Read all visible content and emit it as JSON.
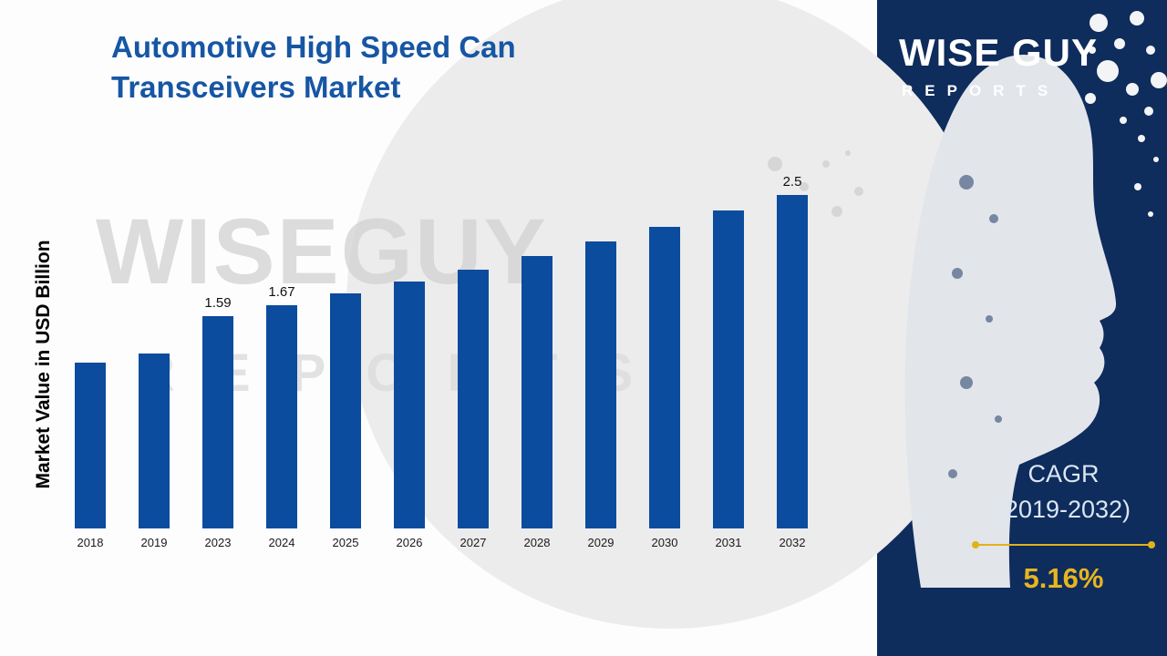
{
  "title": "Automotive High Speed Can Transceivers Market",
  "watermark": {
    "line1": "WISEGUY",
    "line2": "REPORTS"
  },
  "brand": {
    "line1": "WISE GUY",
    "line2": "REPORTS"
  },
  "cagr": {
    "label": "CAGR",
    "range": "(2019-2032)",
    "value": "5.16%"
  },
  "colors": {
    "bar": "#0b4c9e",
    "title_text": "#1656a4",
    "panel_navy": "#0e2c5c",
    "accent_gold": "#e2b219",
    "watermark_gray": "#d4d4d4"
  },
  "chart_data": {
    "type": "bar",
    "title": "Automotive High Speed Can Transceivers Market",
    "xlabel": "",
    "ylabel": "Market Value in USD Billion",
    "unit": "USD Billion",
    "categories": [
      "2018",
      "2019",
      "2023",
      "2024",
      "2025",
      "2026",
      "2027",
      "2028",
      "2029",
      "2030",
      "2031",
      "2032"
    ],
    "values": [
      1.24,
      1.31,
      1.59,
      1.67,
      1.76,
      1.85,
      1.94,
      2.04,
      2.15,
      2.26,
      2.38,
      2.5
    ],
    "bar_labels": [
      "",
      "",
      "1.59",
      "1.67",
      "",
      "",
      "",
      "",
      "",
      "",
      "",
      "2.5"
    ],
    "ylim": [
      0,
      2.8
    ],
    "grid": false,
    "legend": false
  }
}
